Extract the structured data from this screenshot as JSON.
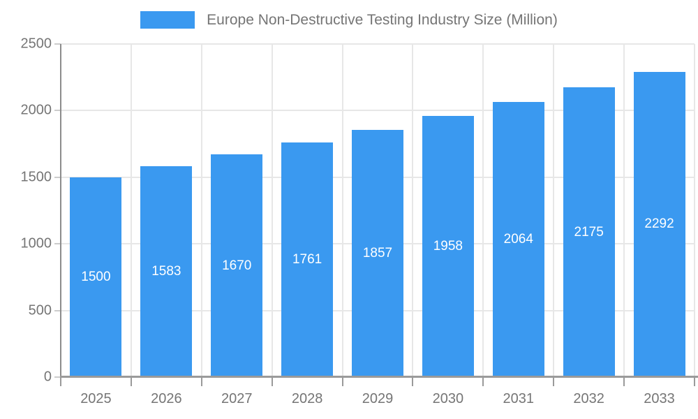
{
  "legend": {
    "label": "Europe Non-Destructive Testing Industry Size (Million)",
    "swatch_color": "#3A99F0"
  },
  "chart_data": {
    "type": "bar",
    "title": "Europe Non-Destructive Testing Industry Size (Million)",
    "categories": [
      "2025",
      "2026",
      "2027",
      "2028",
      "2029",
      "2030",
      "2031",
      "2032",
      "2033"
    ],
    "values": [
      1500,
      1583,
      1670,
      1761,
      1857,
      1958,
      2064,
      2175,
      2292
    ],
    "xlabel": "",
    "ylabel": "",
    "ylim": [
      0,
      2500
    ],
    "y_ticks": [
      0,
      500,
      1000,
      1500,
      2000,
      2500
    ],
    "grid": true,
    "legend_position": "top-center",
    "bar_color": "#3A99F0",
    "value_label_color": "#ffffff"
  },
  "colors": {
    "axis_line": "#8c8c8c",
    "bottom_axis_line": "#9a9a9a",
    "grid_line": "#e7e7e7",
    "y_tick": "#cccccc",
    "text": "#757575",
    "background": "#ffffff"
  }
}
